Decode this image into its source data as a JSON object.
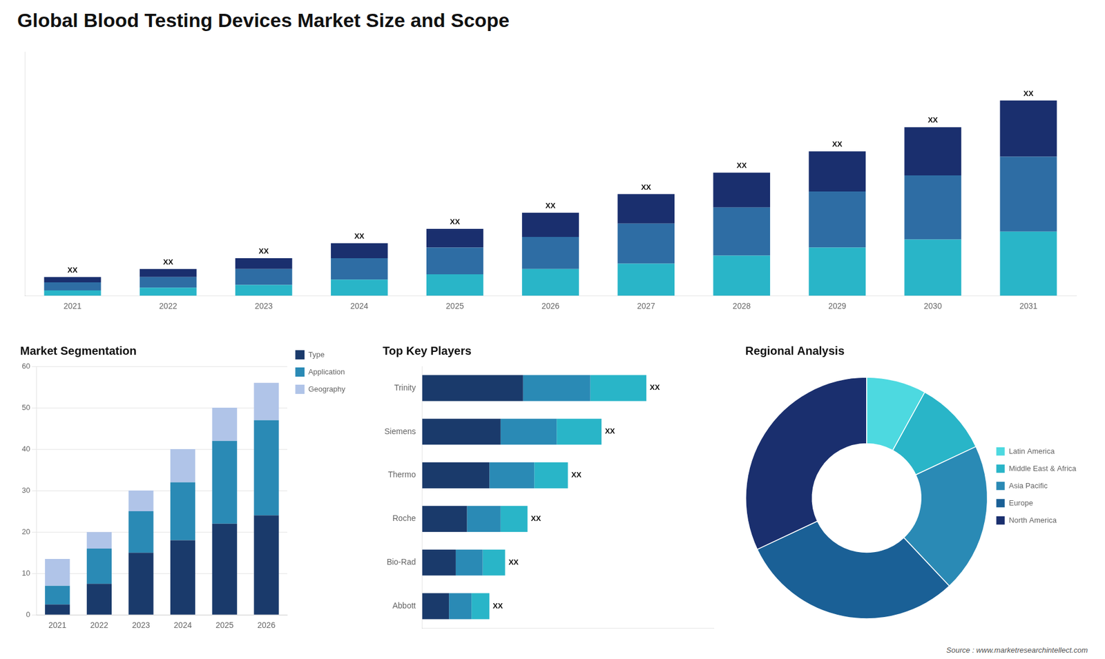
{
  "title": "Global Blood Testing Devices Market Size and Scope",
  "annotations": [
    "Source : www.marketresearchintellect.com"
  ],
  "chart_data": [
    {
      "type": "bar",
      "stacked": true,
      "grid": false,
      "tick_labels": "x",
      "categories": [
        "2021",
        "2022",
        "2023",
        "2024",
        "2025",
        "2026",
        "2027",
        "2028",
        "2029",
        "2030",
        "2031"
      ],
      "series": [
        {
          "color": "#29b5c8",
          "values": [
            1,
            1.5,
            2,
            3,
            4,
            5,
            6,
            7.5,
            9,
            10.5,
            12
          ]
        },
        {
          "color": "#2e6da4",
          "values": [
            1.5,
            2,
            3,
            4,
            5,
            6,
            7.5,
            9,
            10.5,
            12,
            14
          ]
        },
        {
          "color": "#1a2f6e",
          "values": [
            1,
            1.5,
            2,
            2.8,
            3.5,
            4.5,
            5.5,
            6.5,
            7.5,
            9,
            10.5
          ]
        }
      ],
      "ylim": [
        0,
        45.625
      ],
      "annotations": [
        {
          "category": "2021",
          "text": "XX"
        },
        {
          "category": "2022",
          "text": "XX"
        },
        {
          "category": "2023",
          "text": "XX"
        },
        {
          "category": "2024",
          "text": "XX"
        },
        {
          "category": "2025",
          "text": "XX"
        },
        {
          "category": "2026",
          "text": "XX"
        },
        {
          "category": "2027",
          "text": "XX"
        },
        {
          "category": "2028",
          "text": "XX"
        },
        {
          "category": "2029",
          "text": "XX"
        },
        {
          "category": "2030",
          "text": "XX"
        },
        {
          "category": "2031",
          "text": "XX"
        }
      ]
    },
    {
      "type": "bar",
      "title": "Market Segmentation",
      "stacked": true,
      "grid": true,
      "legend": "right",
      "categories": [
        "2021",
        "2022",
        "2023",
        "2024",
        "2025",
        "2026"
      ],
      "series": [
        {
          "name": "Type",
          "color": "#1a3a6b",
          "values": [
            2.5,
            7.5,
            15,
            18,
            22,
            24
          ]
        },
        {
          "name": "Application",
          "color": "#2a8ab5",
          "values": [
            4.5,
            8.5,
            10,
            14,
            20,
            23
          ]
        },
        {
          "name": "Geography",
          "color": "#b0c4e8",
          "values": [
            6.5,
            4.0,
            5,
            8,
            8,
            9
          ]
        }
      ],
      "ylim": [
        0,
        60
      ],
      "yticks": [
        0,
        10,
        20,
        30,
        40,
        50,
        60
      ]
    },
    {
      "type": "bar",
      "title": "Top Key Players",
      "orientation": "horizontal",
      "stacked": true,
      "grid": false,
      "tick_labels": "y",
      "categories": [
        "Trinity",
        "Siemens",
        "Thermo",
        "Roche",
        "Bio-Rad",
        "Abbott"
      ],
      "series": [
        {
          "color": "#1a3a6b",
          "values": [
            4.5,
            3.5,
            3.0,
            2.0,
            1.5,
            1.2
          ]
        },
        {
          "color": "#2a8ab5",
          "values": [
            3.0,
            2.5,
            2.0,
            1.5,
            1.2,
            1.0
          ]
        },
        {
          "color": "#29b5c8",
          "values": [
            2.5,
            2.0,
            1.5,
            1.2,
            1.0,
            0.8
          ]
        }
      ],
      "xlim": [
        0,
        13
      ],
      "annotations": [
        {
          "category": "Trinity",
          "text": "XX"
        },
        {
          "category": "Siemens",
          "text": "XX"
        },
        {
          "category": "Thermo",
          "text": "XX"
        },
        {
          "category": "Roche",
          "text": "XX"
        },
        {
          "category": "Bio-Rad",
          "text": "XX"
        },
        {
          "category": "Abbott",
          "text": "XX"
        }
      ]
    },
    {
      "type": "doughnut",
      "title": "Regional Analysis",
      "legend": "right",
      "categories": [
        "Latin America",
        "Middle East &\nAfrica",
        "Asia Pacific",
        "Europe",
        "North America"
      ],
      "values": [
        8,
        10,
        20,
        30,
        32
      ],
      "colors": [
        "#4dd9e0",
        "#29b5c8",
        "#2a8ab5",
        "#1a6096",
        "#1a2f6e"
      ]
    }
  ]
}
